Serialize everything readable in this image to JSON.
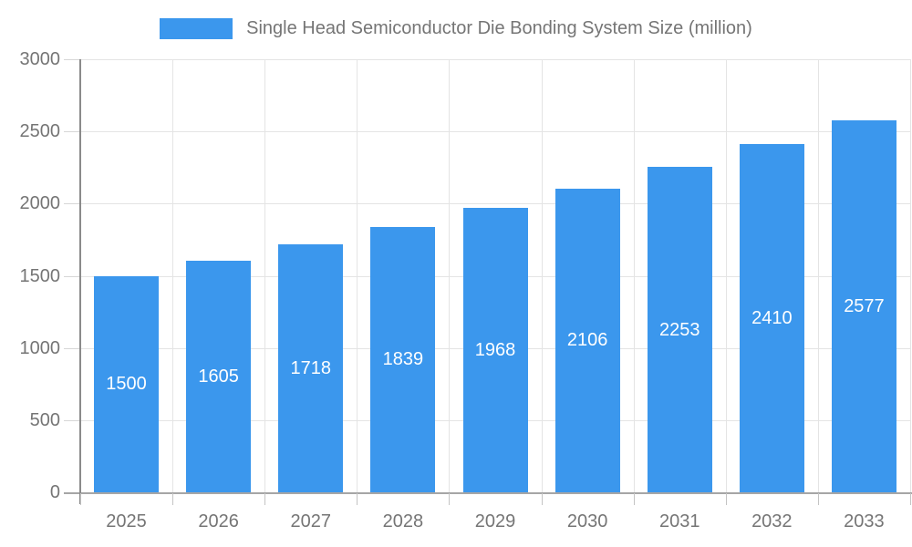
{
  "chart_data": {
    "type": "bar",
    "title": "Single Head Semiconductor Die Bonding System Size (million)",
    "series_name": "Single Head Semiconductor Die Bonding System Size (million)",
    "categories": [
      "2025",
      "2026",
      "2027",
      "2028",
      "2029",
      "2030",
      "2031",
      "2032",
      "2033"
    ],
    "values": [
      1500,
      1605,
      1718,
      1839,
      1968,
      2106,
      2253,
      2410,
      2577
    ],
    "xlabel": "",
    "ylabel": "",
    "ylim": [
      0,
      3000
    ],
    "ytick_step": 500,
    "y_tick_labels": [
      "0",
      "500",
      "1000",
      "1500",
      "2000",
      "2500",
      "3000"
    ],
    "grid": true,
    "legend_position": "top-center",
    "value_labels": "centered-inside-bars",
    "colors": {
      "bar": "#3B97ED",
      "value_label": "#ffffff",
      "axis_text": "#757575",
      "gridline": "#e4e4e4",
      "y_axis_line": "#8a8a8a",
      "x_axis_line": "#a6a6a6",
      "background": "#ffffff"
    }
  }
}
